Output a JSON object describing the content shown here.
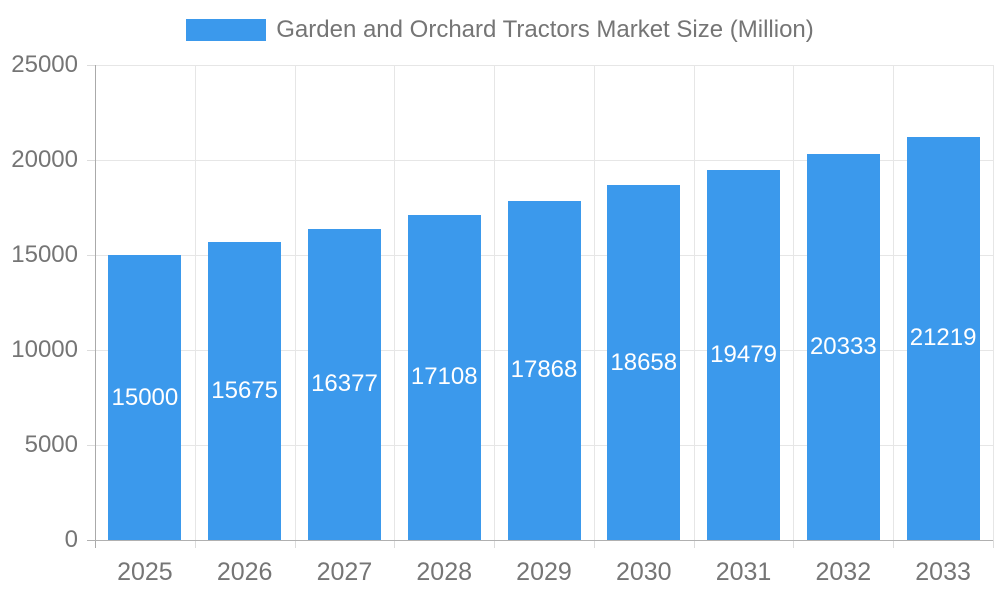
{
  "legend": {
    "label": "Garden and Orchard Tractors Market Size (Million)"
  },
  "chart_data": {
    "type": "bar",
    "title": "Garden and Orchard Tractors Market Size (Million)",
    "categories": [
      "2025",
      "2026",
      "2027",
      "2028",
      "2029",
      "2030",
      "2031",
      "2032",
      "2033"
    ],
    "values": [
      15000,
      15675,
      16377,
      17108,
      17868,
      18658,
      19479,
      20333,
      21219
    ],
    "xlabel": "",
    "ylabel": "",
    "ylim": [
      0,
      25000
    ],
    "yticks": [
      0,
      5000,
      10000,
      15000,
      20000,
      25000
    ],
    "grid": true,
    "legend_position": "top-center",
    "value_labels": "inside-center",
    "colors": {
      "bar": "#3B99EC",
      "value_label": "#ffffff",
      "axis_text": "#757575",
      "gridline": "#e6e6e6",
      "axis_line": "#b0b0b0"
    }
  }
}
